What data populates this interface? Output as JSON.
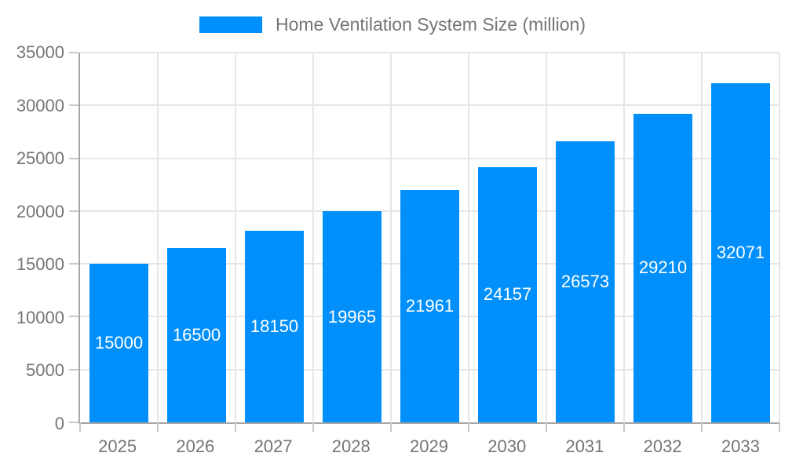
{
  "chart_data": {
    "type": "bar",
    "title": "Home Ventilation System Size (million)",
    "categories": [
      "2025",
      "2026",
      "2027",
      "2028",
      "2029",
      "2030",
      "2031",
      "2032",
      "2033"
    ],
    "values": [
      15000,
      16500,
      18150,
      19965,
      21961,
      24157,
      26573,
      29210,
      32071
    ],
    "series": [
      {
        "name": "Home Ventilation System Size (million)",
        "values": [
          15000,
          16500,
          18150,
          19965,
          21961,
          24157,
          26573,
          29210,
          32071
        ]
      }
    ],
    "data_labels": [
      "15000",
      "16500",
      "18150",
      "19965",
      "21961",
      "24157",
      "26573",
      "29210",
      "32071"
    ],
    "xlabel": "",
    "ylabel": "",
    "ylim": [
      0,
      35000
    ],
    "yticks": [
      0,
      5000,
      10000,
      15000,
      20000,
      25000,
      30000,
      35000
    ],
    "grid": true,
    "legend_position": "top",
    "bar_width_fraction": 0.75,
    "colors": {
      "bar": "#0190fb",
      "grid": "#e6e6e6",
      "axis": "#a6a6a6",
      "tick": "#c9c9c9",
      "text": "#757575",
      "data_label": "#ffffff",
      "background": "#ffffff"
    }
  }
}
